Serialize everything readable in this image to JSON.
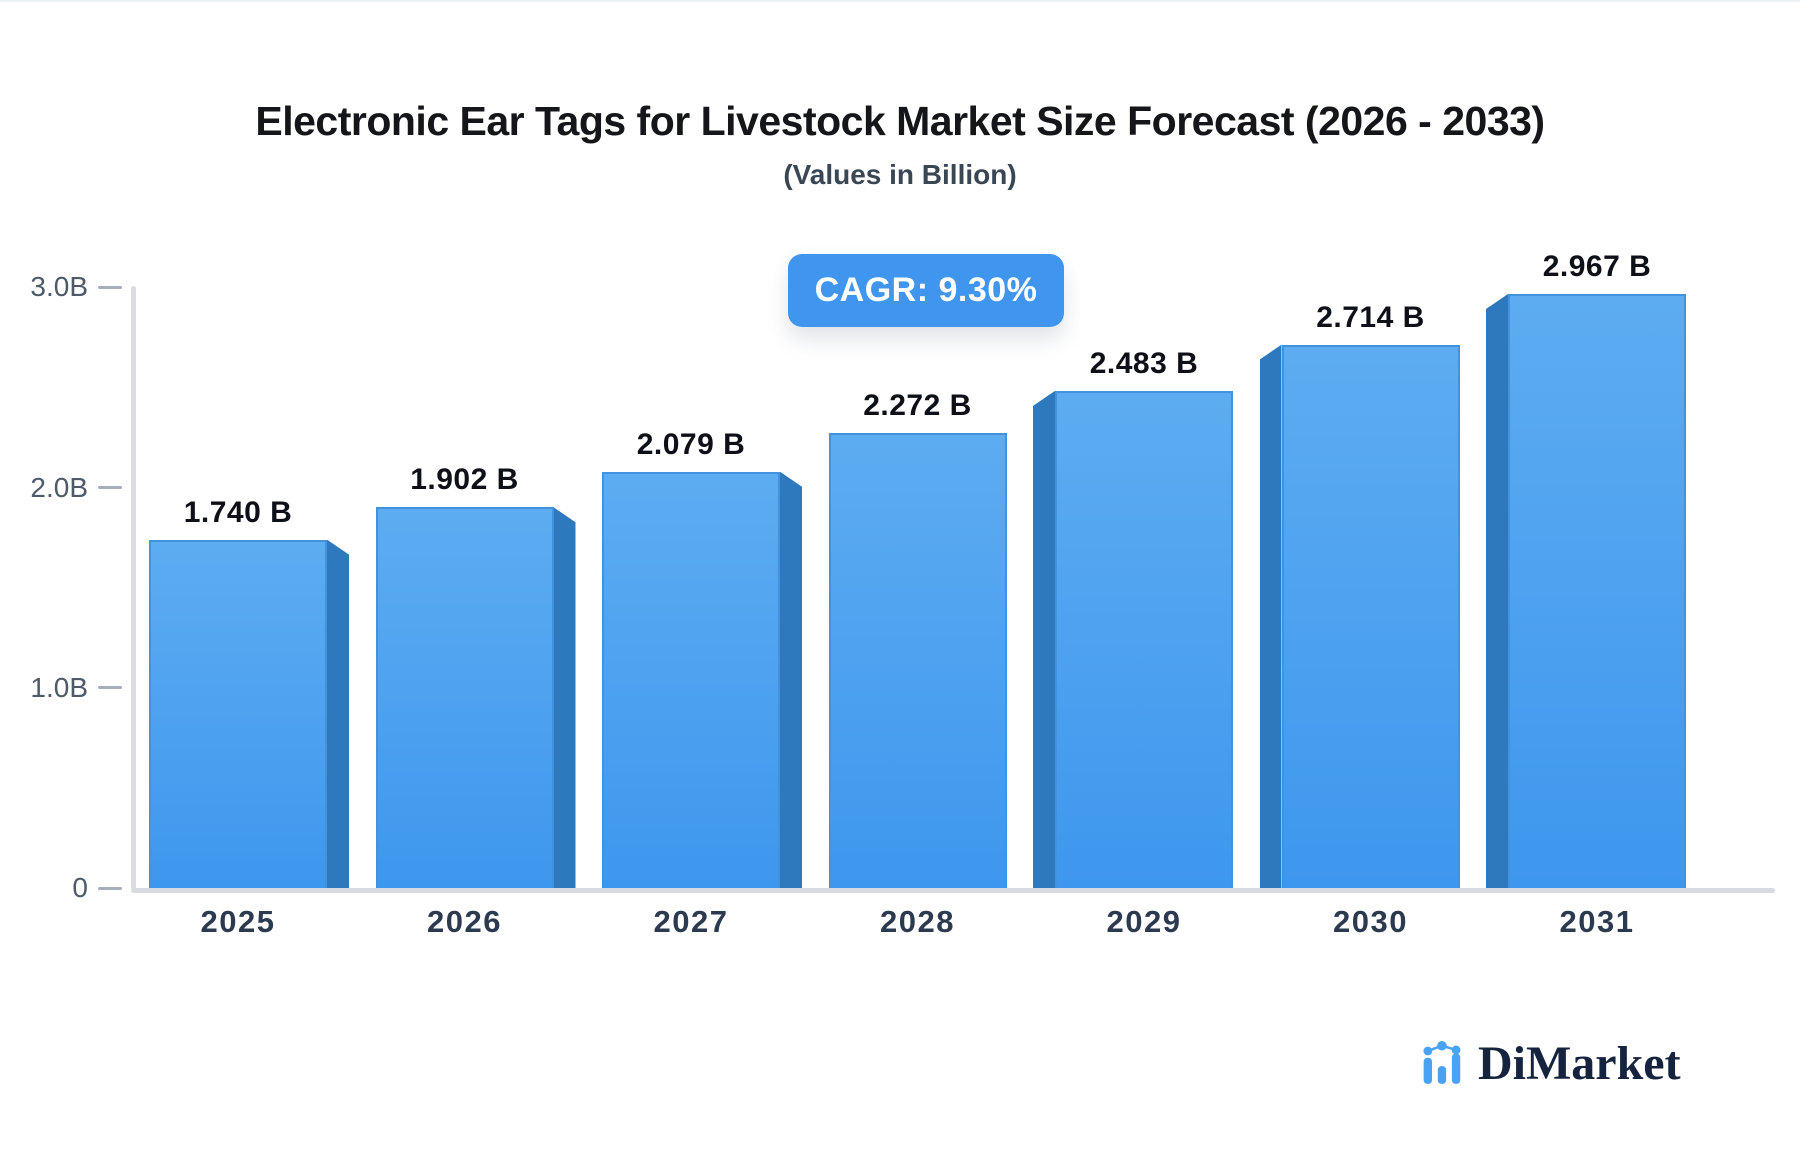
{
  "title": "Electronic Ear Tags for Livestock Market Size Forecast (2026 - 2033)",
  "subtitle": "(Values in Billion)",
  "badge": {
    "label": "CAGR: 9.30%"
  },
  "brand": {
    "name": "DiMarket",
    "icon": "bar-chart-logo-icon"
  },
  "colors": {
    "bar_face_top": "#5dacf1",
    "bar_face_bottom": "#3e97ee",
    "bar_face_border": "#4292dc",
    "bar_side": "#2e78bd",
    "badge_bg": "#4096ee",
    "badge_text": "#ffffff",
    "axis_line": "#d9dde3",
    "tick": "#a7b0ba",
    "y_label": "#4e5a68",
    "x_label": "#2c3a4f",
    "value_label": "#0d1117",
    "title": "#141619",
    "subtitle": "#3a4654",
    "logo_navy": "#16233f",
    "logo_blue": "#4aa2f5"
  },
  "chart_data": {
    "type": "bar",
    "categories": [
      "2025",
      "2026",
      "2027",
      "2028",
      "2029",
      "2030",
      "2031"
    ],
    "values": [
      1.74,
      1.902,
      2.079,
      2.272,
      2.483,
      2.714,
      2.967
    ],
    "value_labels": [
      "1.740 B",
      "1.902 B",
      "2.079 B",
      "2.272 B",
      "2.483 B",
      "2.714 B",
      "2.967 B"
    ],
    "title": "Electronic Ear Tags for Livestock Market Size Forecast (2026 - 2033)",
    "subtitle": "(Values in Billion)",
    "xlabel": "",
    "ylabel": "",
    "ylim": [
      0,
      3.0
    ],
    "y_ticks": [
      {
        "label": "3.0B",
        "value": 3.0
      },
      {
        "label": "2.0B",
        "value": 2.0
      },
      {
        "label": "1.0B",
        "value": 1.0
      },
      {
        "label": "0",
        "value": 0.0
      }
    ],
    "grid": false,
    "legend": false,
    "annotation": "CAGR: 9.30%",
    "bar_style": "3d-beveled"
  }
}
